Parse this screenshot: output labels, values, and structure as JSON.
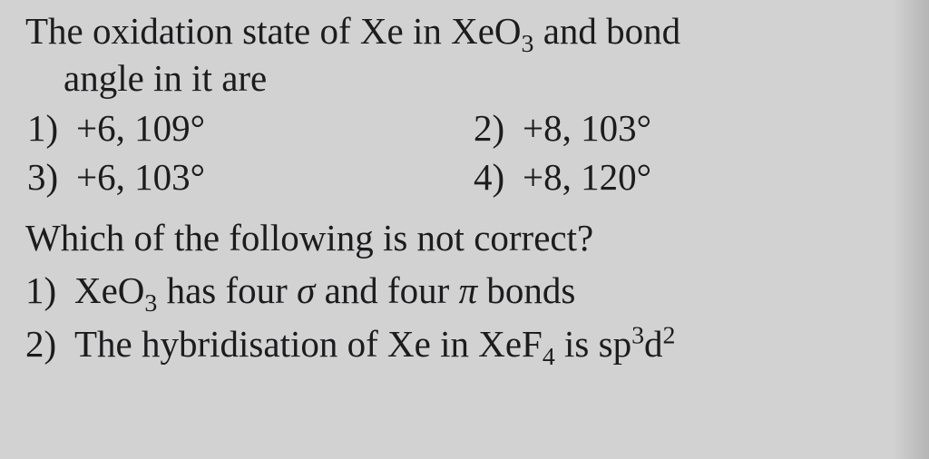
{
  "colors": {
    "background": "#d2d2d3",
    "text": "#1c1c1e"
  },
  "typography": {
    "font_family": "Times New Roman",
    "base_size_pt": 31
  },
  "question1": {
    "stem_line1": "The oxidation state of Xe in XeO",
    "subscript1": "3",
    "stem_line1_tail": " and bond",
    "stem_line2": "angle in it are",
    "options": {
      "opt1": {
        "num": "1)",
        "text": "+6, 109°"
      },
      "opt2": {
        "num": "2)",
        "text": "+8, 103°"
      },
      "opt3": {
        "num": "3)",
        "text": "+6, 103°"
      },
      "opt4": {
        "num": "4)",
        "text": "+8, 120°"
      }
    }
  },
  "question2": {
    "stem": "Which of the following is not correct?",
    "opt1": {
      "num": "1)",
      "p1": "XeO",
      "sub1": "3",
      "p2": " has four ",
      "sigma": "σ",
      "p3": " and four ",
      "pi": "π",
      "p4": " bonds"
    },
    "opt2": {
      "num": "2)",
      "p1": "The hybridisation of Xe in XeF",
      "sub1": "4",
      "p2": " is sp",
      "sup1": "3",
      "p3": "d",
      "sup2": "2"
    }
  }
}
